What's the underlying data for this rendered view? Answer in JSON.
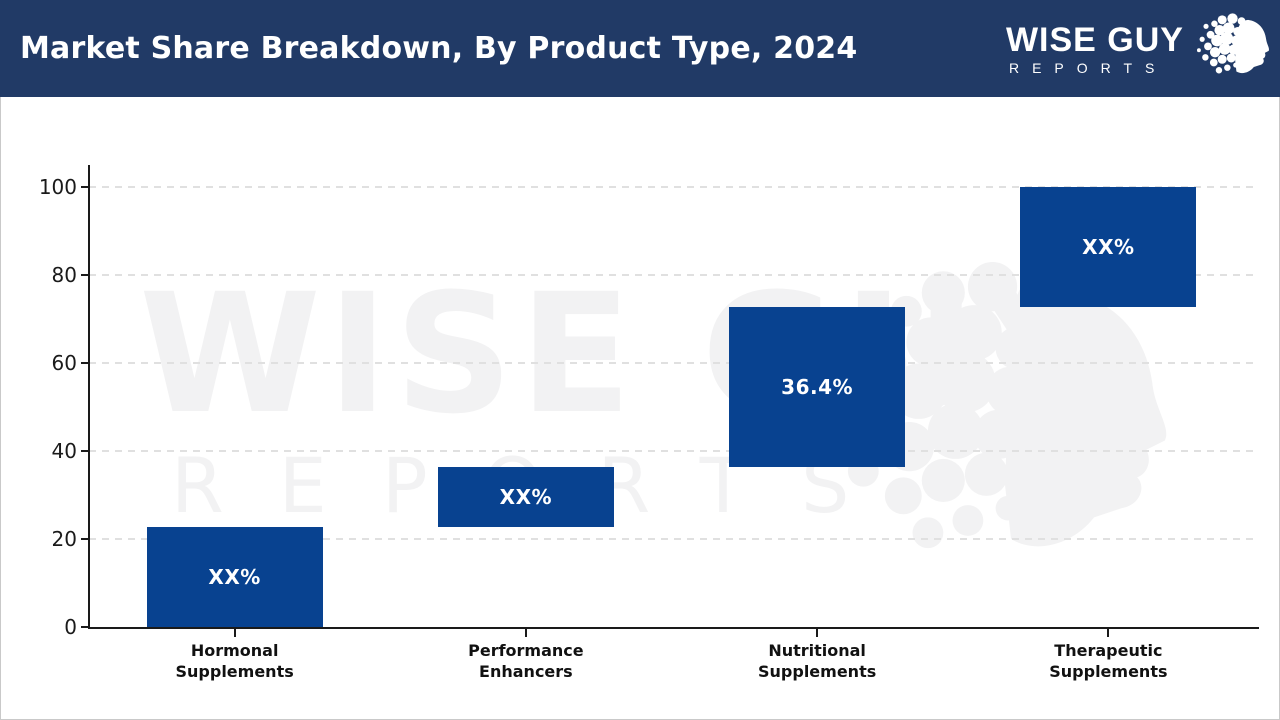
{
  "header": {
    "title": "Market Share Breakdown, By Product Type, 2024",
    "logo": {
      "name": "Wise Guy Reports",
      "line1": "WISE GUY",
      "line2": "REPORTS"
    }
  },
  "watermark": {
    "line1": "WISE GUY",
    "line2": "REPORTS"
  },
  "colors": {
    "header_bg": "#213a66",
    "bar": "#084290",
    "bar_label": "#ffffff",
    "axis": "#1a1a1a",
    "grid": "#e0e0e0",
    "watermark": "#f2f2f3",
    "page_border": "#c9c9c9"
  },
  "chart_data": {
    "type": "bar",
    "variant": "waterfall",
    "title": "Market Share Breakdown, By Product Type, 2024",
    "categories": [
      "Hormonal Supplements",
      "Performance Enhancers",
      "Nutritional Supplements",
      "Therapeutic Supplements"
    ],
    "category_lines": [
      [
        "Hormonal",
        "Supplements"
      ],
      [
        "Performance",
        "Enhancers"
      ],
      [
        "Nutritional",
        "Supplements"
      ],
      [
        "Therapeutic",
        "Supplements"
      ]
    ],
    "segments": [
      {
        "category": "Hormonal Supplements",
        "start": 0,
        "end": 22.7,
        "label": "XX%"
      },
      {
        "category": "Performance Enhancers",
        "start": 22.7,
        "end": 36.4,
        "label": "XX%"
      },
      {
        "category": "Nutritional Supplements",
        "start": 36.4,
        "end": 72.8,
        "label": "36.4%"
      },
      {
        "category": "Therapeutic Supplements",
        "start": 72.8,
        "end": 100,
        "label": "XX%"
      }
    ],
    "ylim": [
      0,
      100
    ],
    "yticks": [
      0,
      20,
      40,
      60,
      80,
      100
    ],
    "grid": "horizontal-dashed",
    "legend": "none"
  }
}
